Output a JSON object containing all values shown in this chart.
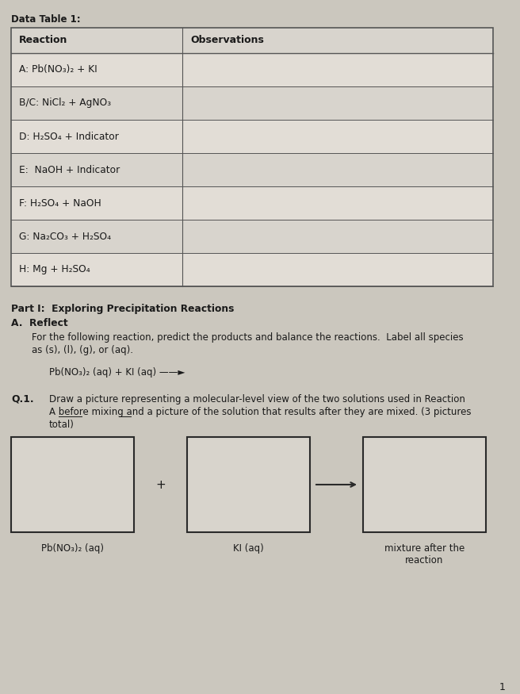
{
  "title": "Data Table 1:",
  "table_header": [
    "Reaction",
    "Observations"
  ],
  "table_rows": [
    "A: Pb(NO₃)₂ + KI",
    "B/C: NiCl₂ + AgNO₃",
    "D: H₂SO₄ + Indicator",
    "E:  NaOH + Indicator",
    "F: H₂SO₄ + NaOH",
    "G: Na₂CO₃ + H₂SO₄",
    "H: Mg + H₂SO₄"
  ],
  "part_header": "Part I:  Exploring Precipitation Reactions",
  "section_a": "A.  Reflect",
  "reflect_line1": "For the following reaction, predict the products and balance the reactions.  Label all species",
  "reflect_line2": "as (s), (l), (g), or (aq).",
  "reaction_eq": "Pb(NO₃)₂ (aq) + KI (aq) ——►",
  "q1_label": "Q.1.",
  "q1_line1": "Draw a picture representing a molecular-level view of the two solutions used in Reaction",
  "q1_line2": "A before mixing and a picture of the solution that results after they are mixed. (3 pictures",
  "q1_line3": "total)",
  "q1_underline_words": [
    "before",
    "and"
  ],
  "box_labels": [
    "Pb(NO₃)₂ (aq)",
    "KI (aq)",
    "mixture after the\nreaction"
  ],
  "page_number": "1",
  "bg_color": "#cbc7be",
  "table_row_colors": [
    "#e2ddd6",
    "#d8d4cd"
  ],
  "header_row_color": "#d8d4cd",
  "text_color": "#1a1a1a",
  "line_color": "#555555",
  "box_face_color": "#d8d4cc"
}
